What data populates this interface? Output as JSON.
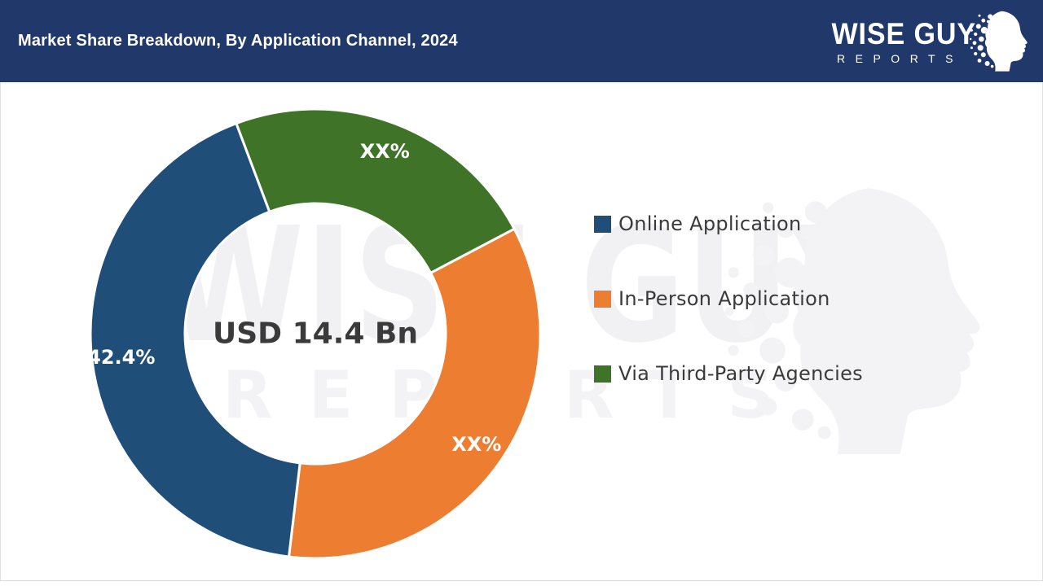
{
  "header": {
    "title": "Market Share Breakdown, By Application Channel, 2024",
    "logo": {
      "line1": "WISE GUY",
      "line2": "REPORTS"
    }
  },
  "watermark": {
    "line1": "WISE GUY",
    "line2": "REPORTS"
  },
  "chart_data": {
    "type": "pie",
    "subtype": "donut",
    "title": "Market Share Breakdown, By Application Channel, 2024",
    "center_label": "USD 14.4 Bn",
    "rotation_deg": -20.6,
    "segments": [
      {
        "label": "Via Third-Party Agencies",
        "display_label": "XX%",
        "value_pct": 23.0,
        "color": "#3E7328"
      },
      {
        "label": "In-Person Application",
        "display_label": "XX%",
        "value_pct": 34.6,
        "color": "#ED7D31"
      },
      {
        "label": "Online Application",
        "display_label": "42.4%",
        "value_pct": 42.4,
        "color": "#1F4E78"
      }
    ],
    "legend": [
      {
        "label": "Online Application",
        "color": "#1F4E78"
      },
      {
        "label": "In-Person Application",
        "color": "#ED7D31"
      },
      {
        "label": "Via Third-Party Agencies",
        "color": "#3E7328"
      }
    ],
    "legend_position": "right"
  }
}
